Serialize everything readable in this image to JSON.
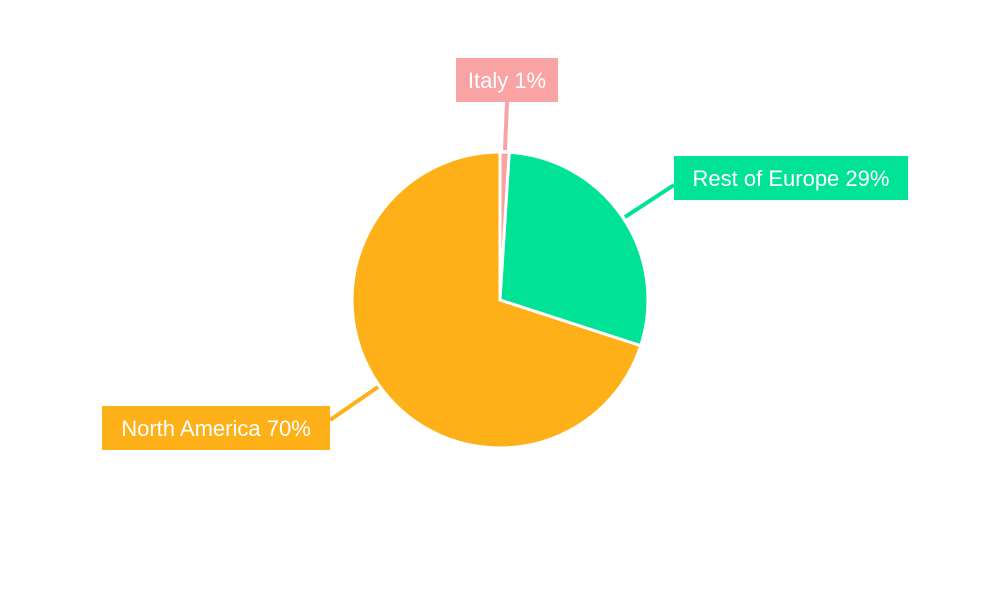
{
  "chart_data": {
    "type": "pie",
    "title": "",
    "categories": [
      "Italy",
      "Rest of Europe",
      "North America"
    ],
    "values": [
      1,
      29,
      70
    ],
    "labels": [
      "Italy 1%",
      "Rest of Europe 29%",
      "North America 70%"
    ],
    "colors": [
      "#F9A3A4",
      "#00E396",
      "#FEB019"
    ],
    "start_angle_deg": 0,
    "direction": "clockwise",
    "legend": "none"
  }
}
